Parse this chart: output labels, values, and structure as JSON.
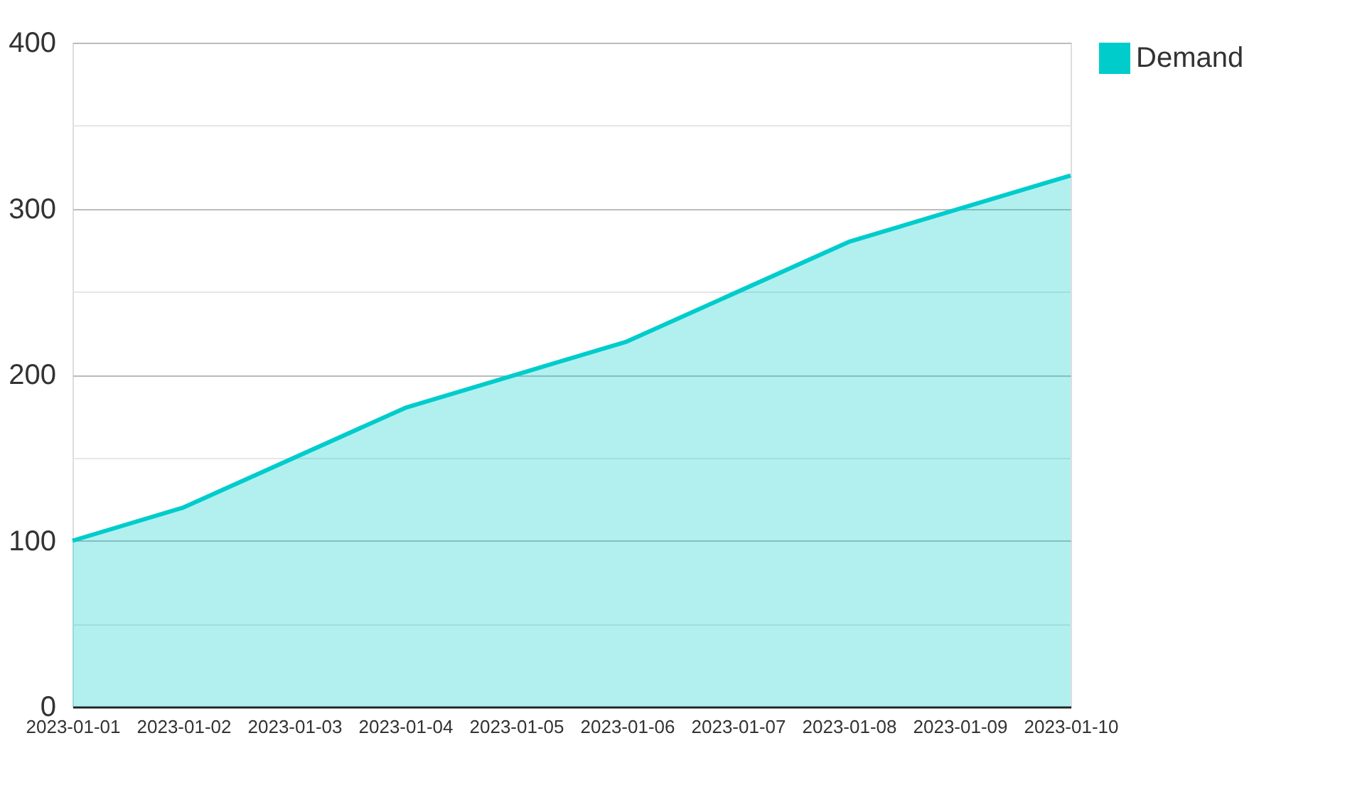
{
  "chart_data": {
    "type": "area",
    "x": [
      "2023-01-01",
      "2023-01-02",
      "2023-01-04",
      "2023-01-06",
      "2023-01-08",
      "2023-01-10"
    ],
    "series": [
      {
        "name": "Demand",
        "color": "#00cccc",
        "values": [
          100,
          120,
          180,
          220,
          280,
          320
        ]
      }
    ],
    "xlim": [
      "2023-01-01",
      "2023-01-10"
    ],
    "xticks": [
      "2023-01-01",
      "2023-01-02",
      "2023-01-03",
      "2023-01-04",
      "2023-01-05",
      "2023-01-06",
      "2023-01-07",
      "2023-01-08",
      "2023-01-09",
      "2023-01-10"
    ],
    "ylim": [
      0,
      400
    ],
    "yticks": [
      0,
      {
        "value": 50,
        "label": null
      },
      100,
      {
        "value": 150,
        "label": null
      },
      200,
      {
        "value": 250,
        "label": null
      },
      300,
      {
        "value": 350,
        "label": null
      },
      400
    ],
    "grid": "y",
    "legend": "top right"
  }
}
